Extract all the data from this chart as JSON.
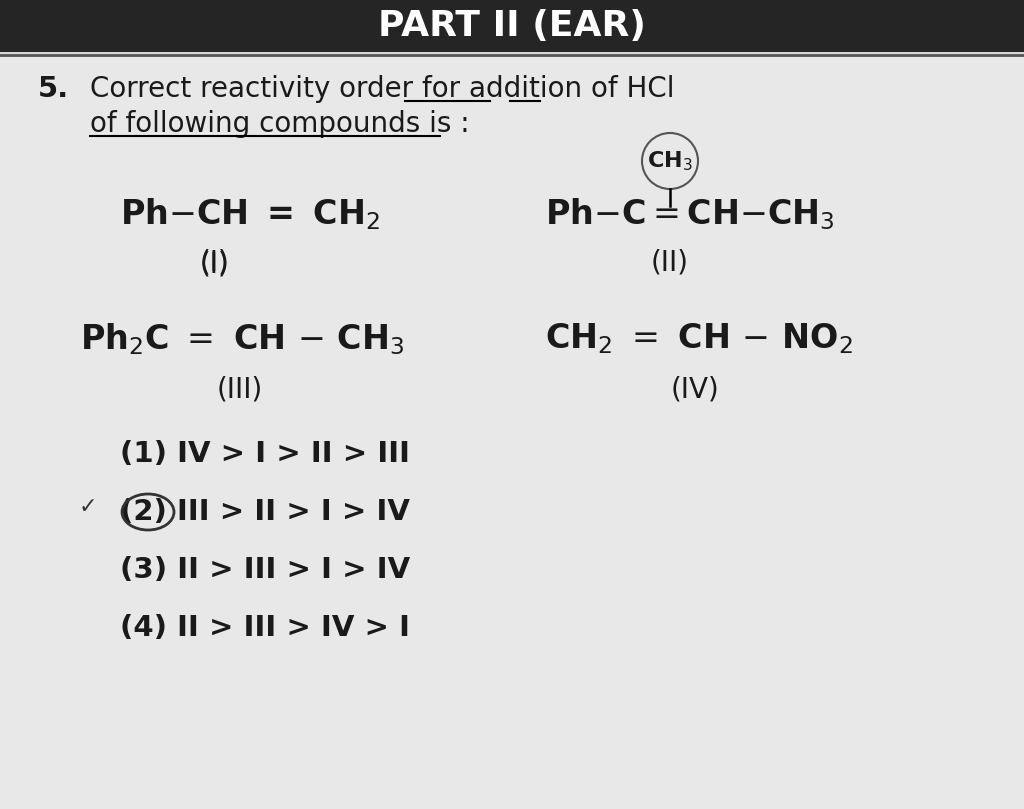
{
  "bg_color": "#d8d8d8",
  "header_bg": "#2a2a2a",
  "header_text": "PART II (EAR)",
  "question_number": "5.",
  "line1": "Correct reactivity order for addition of HCl",
  "line2": "of following compounds is :",
  "text_color": "#1a1a1a",
  "options": [
    "(1) IV > I > II > III",
    "(2) III > II > I > IV",
    "(3) II > III > I > IV",
    "(4) II > III > IV > I"
  ],
  "correct_option_idx": 1,
  "font_size_question": 20,
  "font_size_compound": 22,
  "font_size_label": 20,
  "font_size_option": 21,
  "font_size_header": 26
}
